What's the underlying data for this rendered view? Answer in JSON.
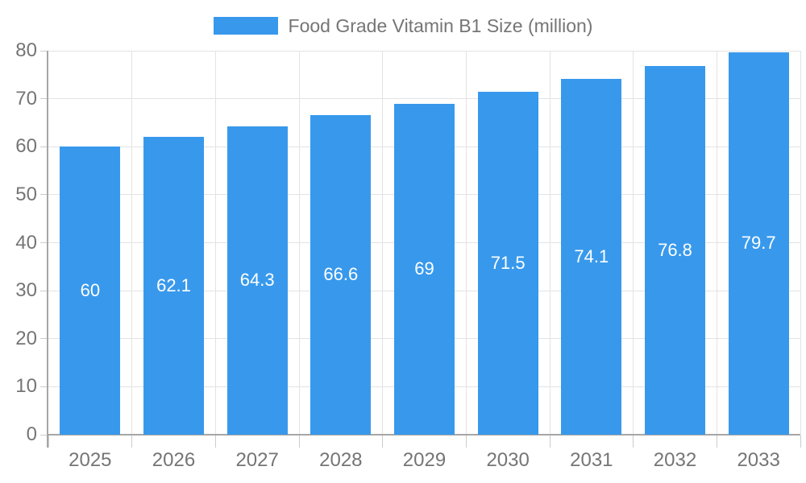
{
  "chart_data": {
    "type": "bar",
    "title": "Food Grade Vitamin B1 Size (million)",
    "legend": {
      "label": "Food Grade Vitamin B1 Size (million)",
      "position": "top-center"
    },
    "categories": [
      "2025",
      "2026",
      "2027",
      "2028",
      "2029",
      "2030",
      "2031",
      "2032",
      "2033"
    ],
    "series": [
      {
        "name": "Food Grade Vitamin B1 Size (million)",
        "values": [
          60,
          62.1,
          64.3,
          66.6,
          69,
          71.5,
          74.1,
          76.8,
          79.7
        ],
        "value_labels": [
          "60",
          "62.1",
          "64.3",
          "66.6",
          "69",
          "71.5",
          "74.1",
          "76.8",
          "79.7"
        ]
      }
    ],
    "xlabel": "",
    "ylabel": "",
    "ylim": [
      0,
      80
    ],
    "yticks": [
      0,
      10,
      20,
      30,
      40,
      50,
      60,
      70,
      80
    ],
    "grid": true,
    "colors": {
      "bar": "#3899EC",
      "axis": "#a6a6a6",
      "tick": "#cccccc",
      "grid": "#e3e3e3",
      "text": "#757575",
      "value_text": "#ffffff",
      "background": "#ffffff"
    }
  }
}
